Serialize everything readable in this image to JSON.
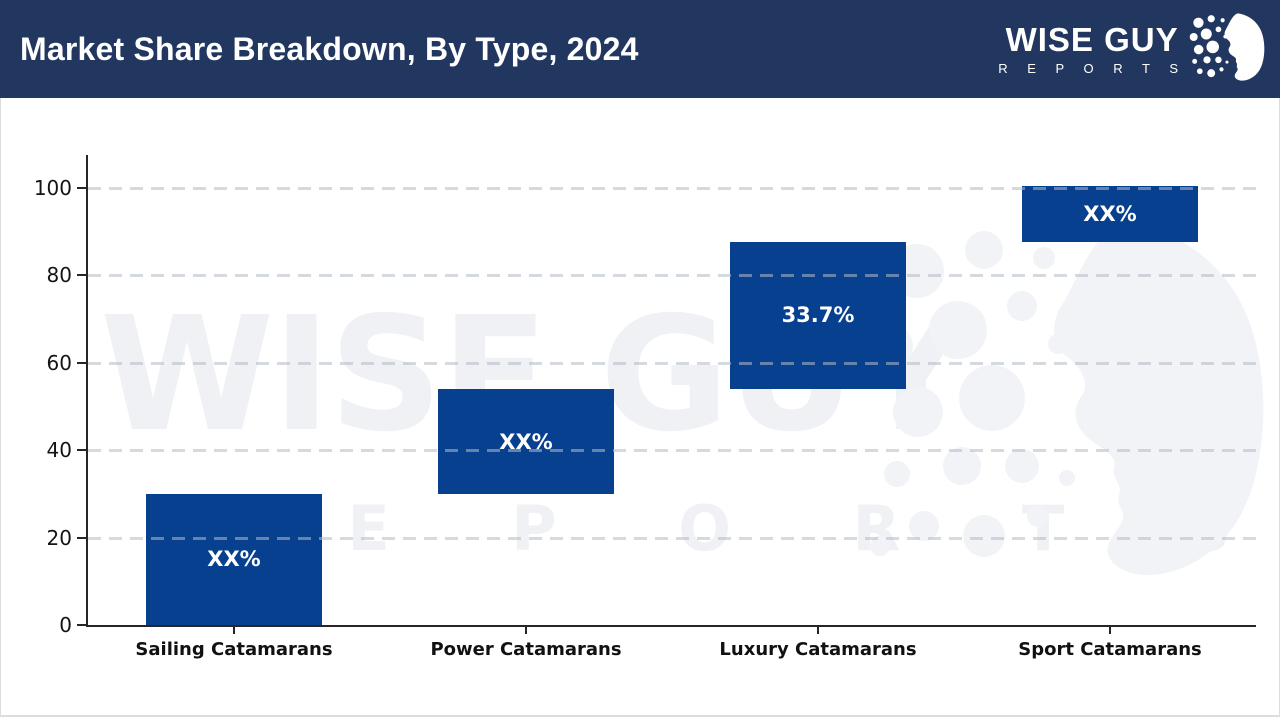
{
  "header": {
    "title": "Market Share Breakdown, By Type, 2024",
    "background_color": "#21375F",
    "logo_line1": "WISE GUY",
    "logo_line2": "R E P O R T S"
  },
  "watermark": {
    "line1": "WISE GUY",
    "line2": "R E P O R T S"
  },
  "chart_data": {
    "type": "bar",
    "subtype": "floating-waterfall",
    "title": "Market Share Breakdown, By Type, 2024",
    "categories": [
      "Sailing Catamarans",
      "Power Catamarans",
      "Luxury Catamarans",
      "Sport Catamarans"
    ],
    "segments": [
      {
        "category": "Sailing Catamarans",
        "start": 0,
        "end": 30,
        "label": "XX%"
      },
      {
        "category": "Power Catamarans",
        "start": 30,
        "end": 53.9,
        "label": "XX%"
      },
      {
        "category": "Luxury Catamarans",
        "start": 53.9,
        "end": 87.7,
        "label": "33.7%"
      },
      {
        "category": "Sport Catamarans",
        "start": 87.7,
        "end": 100.3,
        "label": "XX%"
      }
    ],
    "yticks": [
      0,
      20,
      40,
      60,
      80,
      100
    ],
    "ylim": [
      0,
      107.5
    ],
    "grid": true,
    "grid_style": "dashed",
    "legend_position": "none",
    "xlabel": "",
    "ylabel": "",
    "bar_color": "#07408F",
    "bar_label_color": "#FFFFFF",
    "axis_color": "#262626"
  }
}
